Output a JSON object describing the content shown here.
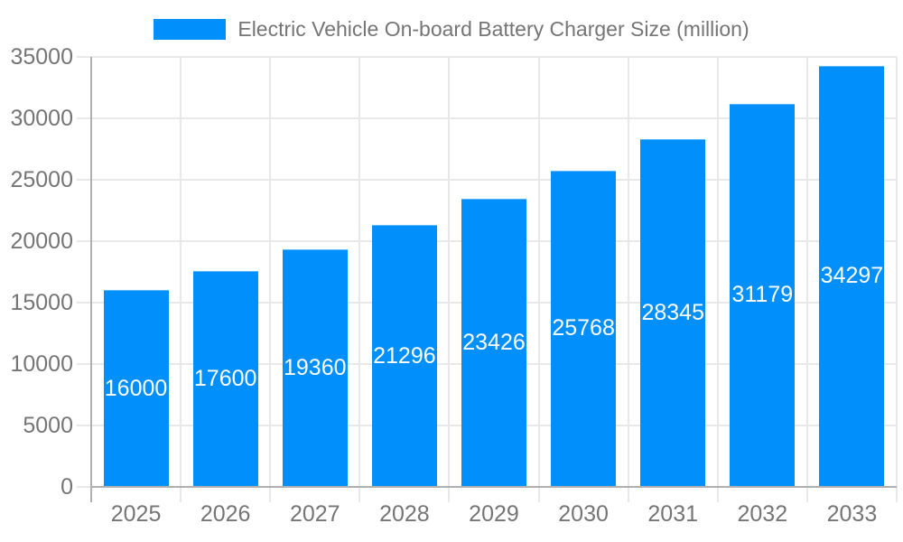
{
  "chart_data": {
    "type": "bar",
    "title": "Electric Vehicle On-board Battery Charger Size (million)",
    "categories": [
      "2025",
      "2026",
      "2027",
      "2028",
      "2029",
      "2030",
      "2031",
      "2032",
      "2033"
    ],
    "values": [
      16000,
      17600,
      19360,
      21296,
      23426,
      25768,
      28345,
      31179,
      34297
    ],
    "value_labels": [
      "16000",
      "17600",
      "19360",
      "21296",
      "23426",
      "25768",
      "28345",
      "31179",
      "34297"
    ],
    "xlabel": "",
    "ylabel": "",
    "ylim": [
      0,
      35000
    ],
    "ytick_step": 5000,
    "ytick_labels": [
      "0",
      "5000",
      "10000",
      "15000",
      "20000",
      "25000",
      "30000",
      "35000"
    ],
    "grid": true,
    "legend_position": "top",
    "colors": {
      "bar": "#008FFB",
      "grid": "#e8e8e8",
      "axis_line": "#b0b0b0",
      "axis_text": "#757575",
      "value_label": "#ffffff",
      "background": "#ffffff"
    }
  }
}
